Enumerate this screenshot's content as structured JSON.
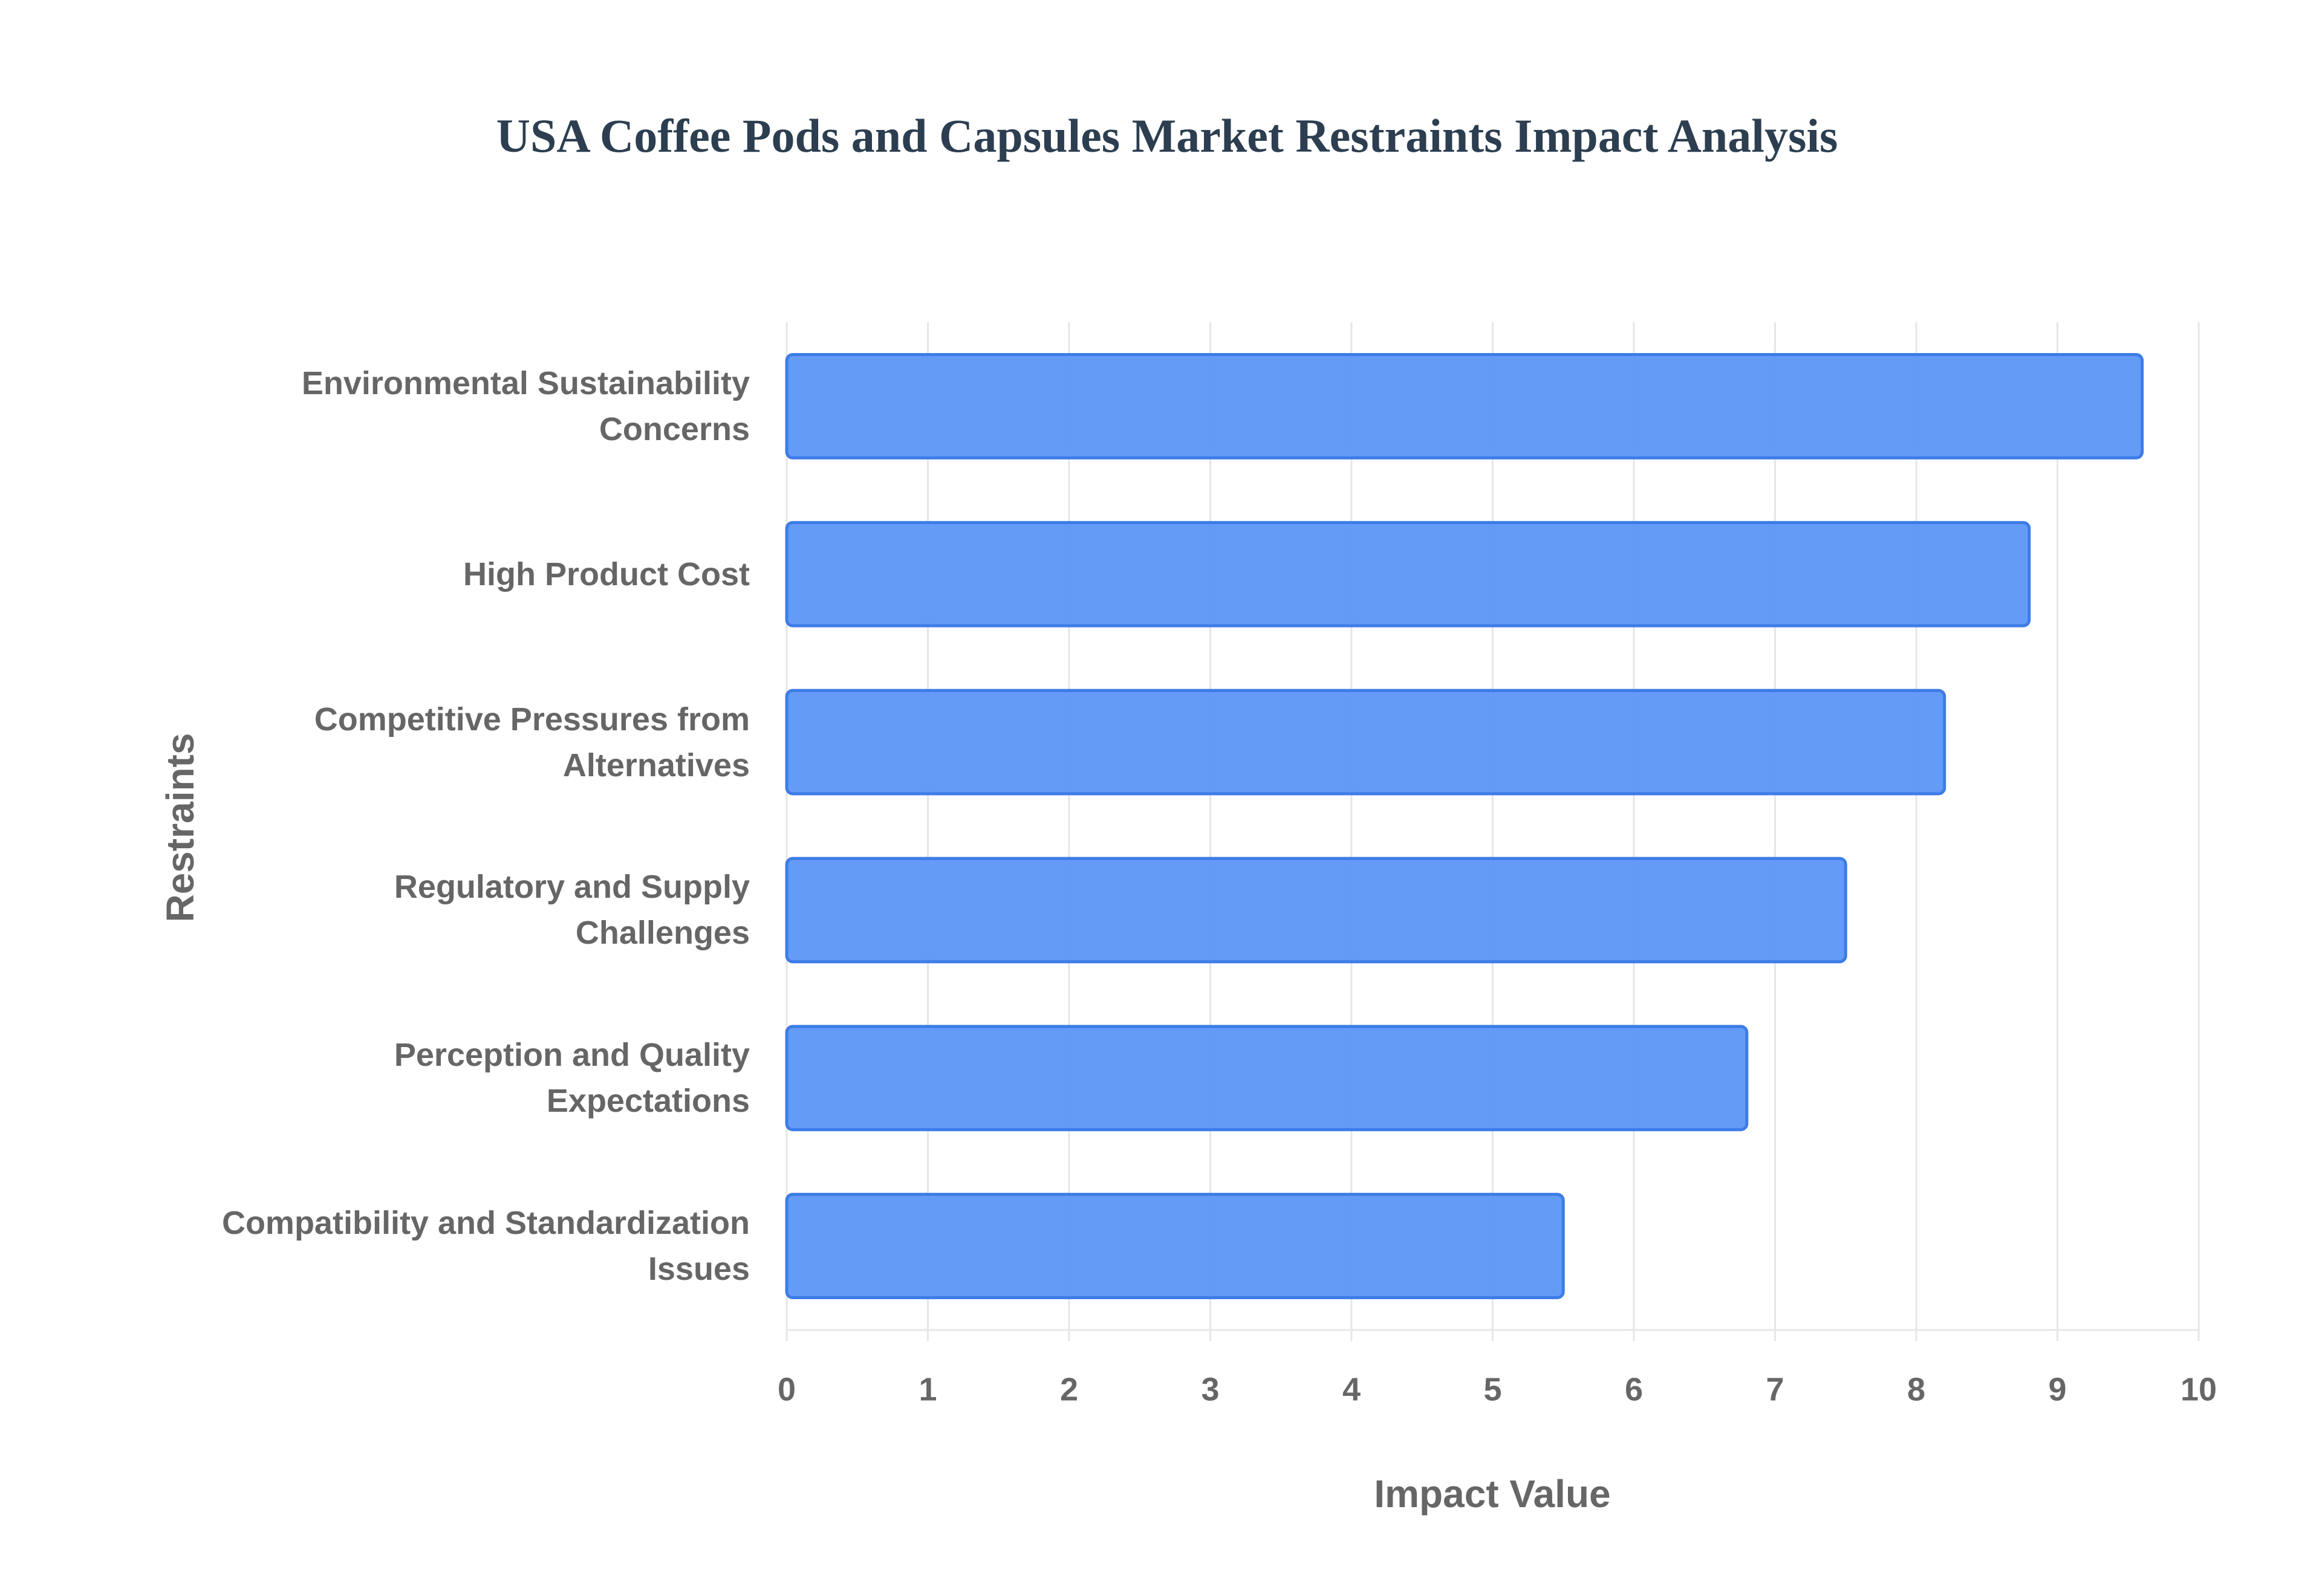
{
  "chart_data": {
    "type": "bar",
    "orientation": "horizontal",
    "title": "USA Coffee Pods and Capsules Market Restraints Impact Analysis",
    "x_label": "Impact Value",
    "y_label": "Restraints",
    "categories": [
      "Environmental Sustainability Concerns",
      "High Product Cost",
      "Competitive Pressures from Alternatives",
      "Regulatory and Supply Challenges",
      "Perception and Quality Expectations",
      "Compatibility and Standardization Issues"
    ],
    "values": [
      9.6,
      8.8,
      8.2,
      7.5,
      6.8,
      5.5
    ],
    "color": "#5b96f5",
    "border_color": "#3d7ce8",
    "xlim": [
      0,
      10
    ],
    "xticks": [
      0,
      1,
      2,
      3,
      4,
      5,
      6,
      7,
      8,
      9,
      10
    ],
    "grid": true
  }
}
